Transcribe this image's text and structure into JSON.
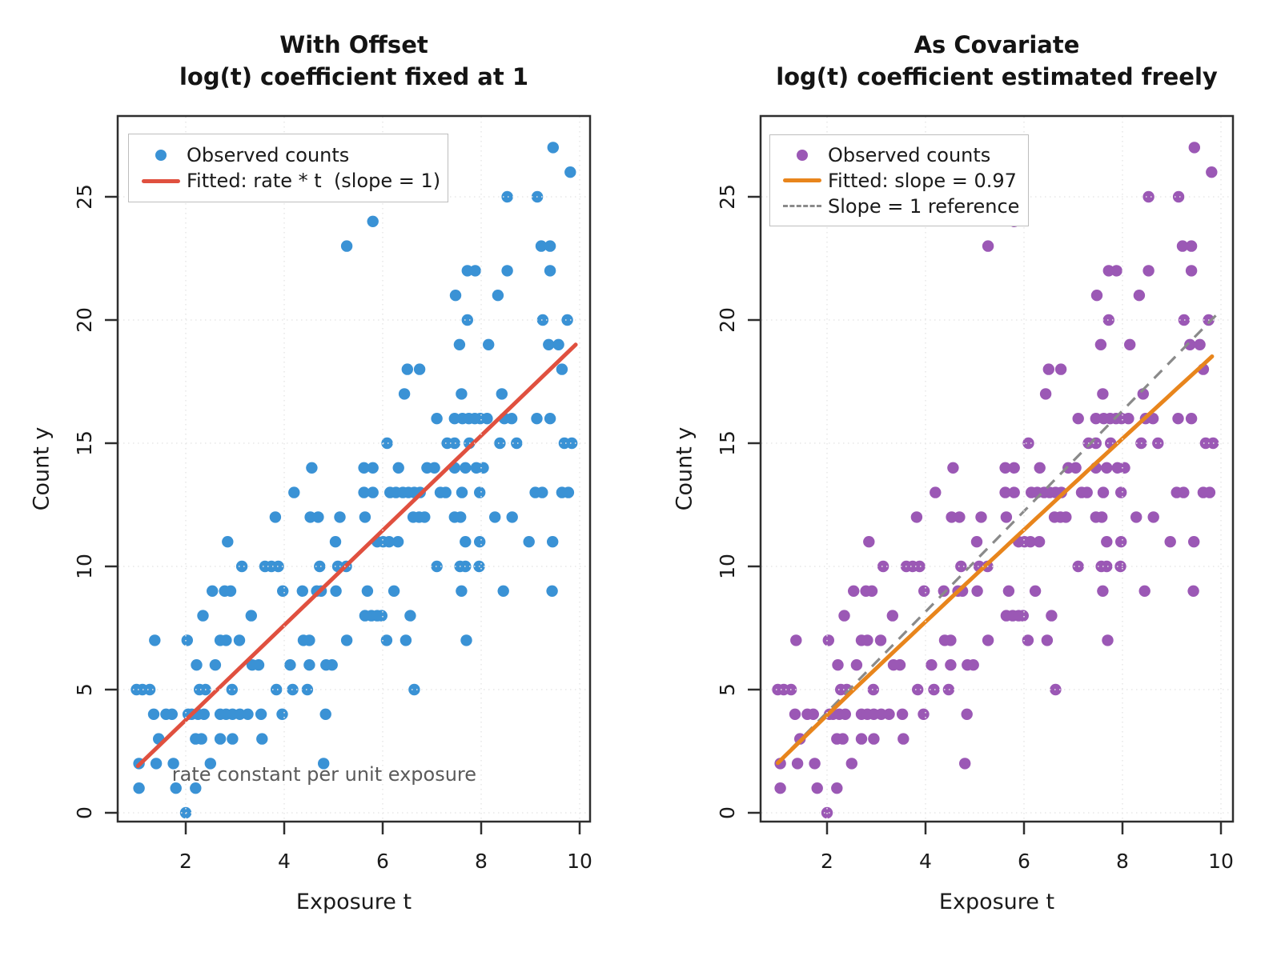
{
  "chart_data": {
    "type": "scatter",
    "xlabel": "Exposure t",
    "ylabel": "Count y",
    "x_ticks": [
      2,
      4,
      6,
      8,
      10
    ],
    "y_ticks": [
      0,
      5,
      10,
      15,
      20,
      25
    ],
    "xlim": [
      0.6,
      10.25
    ],
    "ylim": [
      -0.4,
      28.3
    ],
    "grid": "dotted, drawn over points",
    "points_shared_by_both_panels": true,
    "points": [
      [
        2.0,
        0
      ],
      [
        1.05,
        1
      ],
      [
        1.8,
        1
      ],
      [
        2.2,
        1
      ],
      [
        1.05,
        2
      ],
      [
        1.4,
        2
      ],
      [
        1.75,
        2
      ],
      [
        2.5,
        2
      ],
      [
        4.8,
        2
      ],
      [
        1.45,
        3
      ],
      [
        2.2,
        3
      ],
      [
        2.32,
        3
      ],
      [
        2.7,
        3
      ],
      [
        2.95,
        3
      ],
      [
        3.55,
        3
      ],
      [
        1.35,
        4
      ],
      [
        1.6,
        4
      ],
      [
        1.72,
        4
      ],
      [
        2.05,
        4
      ],
      [
        2.12,
        4
      ],
      [
        2.25,
        4
      ],
      [
        2.37,
        4
      ],
      [
        2.7,
        4
      ],
      [
        2.82,
        4
      ],
      [
        2.95,
        4
      ],
      [
        3.1,
        4
      ],
      [
        3.26,
        4
      ],
      [
        3.53,
        4
      ],
      [
        3.96,
        4
      ],
      [
        4.84,
        4
      ],
      [
        1.0,
        5
      ],
      [
        1.12,
        5
      ],
      [
        1.27,
        5
      ],
      [
        2.28,
        5
      ],
      [
        2.4,
        5
      ],
      [
        2.94,
        5
      ],
      [
        3.84,
        5
      ],
      [
        4.17,
        5
      ],
      [
        4.47,
        5
      ],
      [
        6.64,
        5
      ],
      [
        2.22,
        6
      ],
      [
        2.6,
        6
      ],
      [
        3.35,
        6
      ],
      [
        3.48,
        6
      ],
      [
        4.12,
        6
      ],
      [
        4.51,
        6
      ],
      [
        4.85,
        6
      ],
      [
        4.97,
        6
      ],
      [
        1.37,
        7
      ],
      [
        2.03,
        7
      ],
      [
        2.7,
        7
      ],
      [
        2.82,
        7
      ],
      [
        3.09,
        7
      ],
      [
        4.39,
        7
      ],
      [
        4.51,
        7
      ],
      [
        5.27,
        7
      ],
      [
        6.08,
        7
      ],
      [
        6.47,
        7
      ],
      [
        7.7,
        7
      ],
      [
        2.35,
        8
      ],
      [
        3.33,
        8
      ],
      [
        5.64,
        8
      ],
      [
        5.77,
        8
      ],
      [
        5.89,
        8
      ],
      [
        5.98,
        8
      ],
      [
        6.56,
        8
      ],
      [
        2.54,
        9
      ],
      [
        2.79,
        9
      ],
      [
        2.91,
        9
      ],
      [
        3.97,
        9
      ],
      [
        4.37,
        9
      ],
      [
        4.66,
        9
      ],
      [
        4.75,
        9
      ],
      [
        5.05,
        9
      ],
      [
        5.69,
        9
      ],
      [
        6.23,
        9
      ],
      [
        7.6,
        9
      ],
      [
        8.45,
        9
      ],
      [
        9.44,
        9
      ],
      [
        3.14,
        10
      ],
      [
        3.61,
        10
      ],
      [
        3.74,
        10
      ],
      [
        3.88,
        10
      ],
      [
        4.72,
        10
      ],
      [
        5.09,
        10
      ],
      [
        5.26,
        10
      ],
      [
        7.1,
        10
      ],
      [
        7.57,
        10
      ],
      [
        7.68,
        10
      ],
      [
        7.96,
        10
      ],
      [
        2.85,
        11
      ],
      [
        5.04,
        11
      ],
      [
        5.89,
        11
      ],
      [
        6.01,
        11
      ],
      [
        6.13,
        11
      ],
      [
        6.31,
        11
      ],
      [
        7.68,
        11
      ],
      [
        7.97,
        11
      ],
      [
        8.97,
        11
      ],
      [
        9.45,
        11
      ],
      [
        3.82,
        12
      ],
      [
        4.53,
        12
      ],
      [
        4.69,
        12
      ],
      [
        5.13,
        12
      ],
      [
        5.64,
        12
      ],
      [
        6.62,
        12
      ],
      [
        6.74,
        12
      ],
      [
        6.85,
        12
      ],
      [
        7.46,
        12
      ],
      [
        7.58,
        12
      ],
      [
        8.28,
        12
      ],
      [
        8.63,
        12
      ],
      [
        4.2,
        13
      ],
      [
        5.62,
        13
      ],
      [
        5.8,
        13
      ],
      [
        6.15,
        13
      ],
      [
        6.27,
        13
      ],
      [
        6.41,
        13
      ],
      [
        6.52,
        13
      ],
      [
        6.64,
        13
      ],
      [
        6.76,
        13
      ],
      [
        7.17,
        13
      ],
      [
        7.28,
        13
      ],
      [
        7.61,
        13
      ],
      [
        7.97,
        13
      ],
      [
        9.1,
        13
      ],
      [
        9.24,
        13
      ],
      [
        9.64,
        13
      ],
      [
        9.77,
        13
      ],
      [
        4.56,
        14
      ],
      [
        5.62,
        14
      ],
      [
        5.8,
        14
      ],
      [
        6.32,
        14
      ],
      [
        6.9,
        14
      ],
      [
        7.05,
        14
      ],
      [
        7.46,
        14
      ],
      [
        7.68,
        14
      ],
      [
        7.9,
        14
      ],
      [
        8.04,
        14
      ],
      [
        6.09,
        15
      ],
      [
        7.31,
        15
      ],
      [
        7.46,
        15
      ],
      [
        7.76,
        15
      ],
      [
        8.38,
        15
      ],
      [
        8.72,
        15
      ],
      [
        9.69,
        15
      ],
      [
        9.84,
        15
      ],
      [
        7.1,
        16
      ],
      [
        7.46,
        16
      ],
      [
        7.62,
        16
      ],
      [
        7.75,
        16
      ],
      [
        7.87,
        16
      ],
      [
        7.98,
        16
      ],
      [
        8.12,
        16
      ],
      [
        8.47,
        16
      ],
      [
        8.62,
        16
      ],
      [
        9.13,
        16
      ],
      [
        9.4,
        16
      ],
      [
        6.44,
        17
      ],
      [
        7.6,
        17
      ],
      [
        8.42,
        17
      ],
      [
        6.5,
        18
      ],
      [
        6.75,
        18
      ],
      [
        9.64,
        18
      ],
      [
        7.56,
        19
      ],
      [
        8.15,
        19
      ],
      [
        9.37,
        19
      ],
      [
        9.57,
        19
      ],
      [
        7.72,
        20
      ],
      [
        9.25,
        20
      ],
      [
        9.75,
        20
      ],
      [
        7.48,
        21
      ],
      [
        8.34,
        21
      ],
      [
        7.72,
        22
      ],
      [
        7.88,
        22
      ],
      [
        8.53,
        22
      ],
      [
        9.4,
        22
      ],
      [
        5.27,
        23
      ],
      [
        9.22,
        23
      ],
      [
        9.4,
        23
      ],
      [
        5.8,
        24
      ],
      [
        8.53,
        25
      ],
      [
        9.14,
        25
      ],
      [
        9.81,
        26
      ],
      [
        9.46,
        27
      ]
    ],
    "panels": [
      {
        "title": "With Offset",
        "subtitle": "log(t) coefficient fixed at 1",
        "point_color": "#3a92d5",
        "lines": [
          {
            "kind": "segment",
            "label": "Fitted: rate * t  (slope = 1)",
            "color": "#e0503f",
            "width": 5,
            "t1": 1.03,
            "y1": 1.9,
            "t2": 9.92,
            "y2": 19.0
          }
        ],
        "legend_items": [
          {
            "swatch": "dot",
            "color": "#3a92d5",
            "label": "Observed counts"
          },
          {
            "swatch": "line",
            "color": "#e0503f",
            "label": "Fitted: rate * t  (slope = 1)"
          }
        ],
        "annotation": {
          "text": "rate constant per unit exposure",
          "t": 1.72,
          "y": 1.5,
          "color": "#5a5a5a"
        }
      },
      {
        "title": "As Covariate",
        "subtitle": "log(t) coefficient estimated freely",
        "point_color": "#9b58b5",
        "lines": [
          {
            "kind": "proportional",
            "label": "Slope = 1 reference",
            "color": "#8a8a8a",
            "width": 3.2,
            "dash": "14 10",
            "slope": 2.04,
            "t1": 1.0,
            "t2": 9.97
          },
          {
            "kind": "power",
            "label": "Fitted: slope = 0.97",
            "color": "#e8851c",
            "width": 5,
            "a": 2.02,
            "b": 0.97,
            "t1": 1.0,
            "t2": 9.9
          }
        ],
        "legend_items": [
          {
            "swatch": "dot",
            "color": "#9b58b5",
            "label": "Observed counts"
          },
          {
            "swatch": "line",
            "color": "#e8851c",
            "label": "Fitted: slope = 0.97"
          },
          {
            "swatch": "dash",
            "color": "#8a8a8a",
            "label": "Slope = 1 reference"
          }
        ]
      }
    ]
  }
}
